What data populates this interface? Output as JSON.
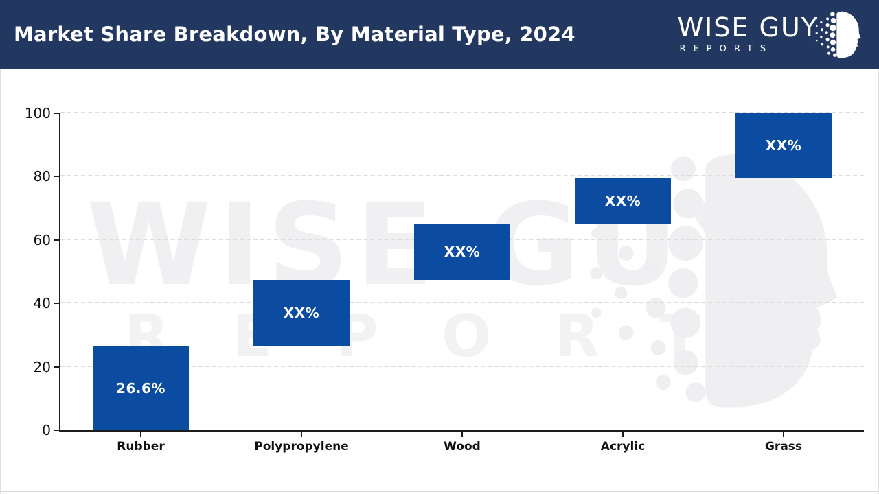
{
  "header": {
    "title": "Market Share Breakdown, By Material Type, 2024",
    "logo": {
      "primary": "WISE GUY",
      "secondary": "REPORTS"
    }
  },
  "watermark": {
    "primary": "WISE GUY",
    "secondary": "REPORTS"
  },
  "chart_data": {
    "type": "bar",
    "subtype": "waterfall",
    "title": "Market Share Breakdown, By Material Type, 2024",
    "categories": [
      "Rubber",
      "Polypropylene",
      "Wood",
      "Acrylic",
      "Grass"
    ],
    "segments": [
      {
        "category": "Rubber",
        "start": 0,
        "end": 26.6,
        "label": "26.6%"
      },
      {
        "category": "Polypropylene",
        "start": 26.6,
        "end": 47.5,
        "label": "XX%"
      },
      {
        "category": "Wood",
        "start": 47.5,
        "end": 65.2,
        "label": "XX%"
      },
      {
        "category": "Acrylic",
        "start": 65.2,
        "end": 79.6,
        "label": "XX%"
      },
      {
        "category": "Grass",
        "start": 79.6,
        "end": 100,
        "label": "XX%"
      }
    ],
    "yticks": [
      0,
      20,
      40,
      60,
      80,
      100
    ],
    "ylim": [
      0,
      100
    ],
    "xlabel": "",
    "ylabel": "",
    "grid": "horizontal-dashed",
    "legend": "none",
    "bar_color": "#0B4CA0",
    "bar_label_color": "#FFFFFF"
  },
  "colors": {
    "header_bg": "#233861",
    "header_text": "#FFFFFF",
    "axis": "#1C1C1C",
    "grid": "#DCDCDC",
    "watermark": "#F0F0F2",
    "background": "#FFFFFF",
    "border": "#D9D9D9"
  }
}
